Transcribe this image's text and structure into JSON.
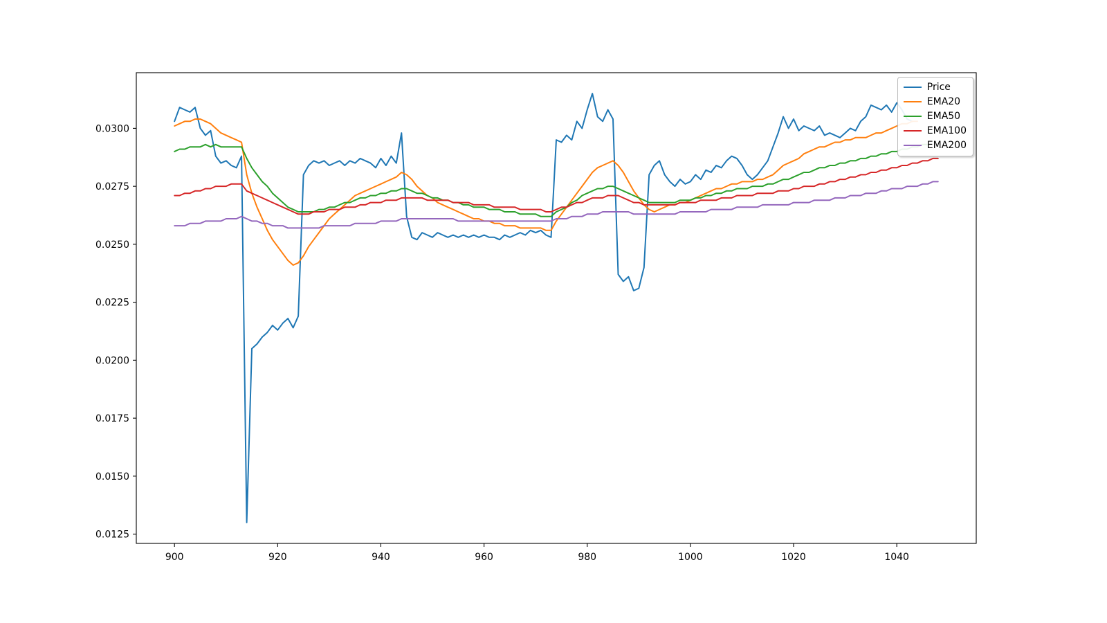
{
  "figure": {
    "background": "#ffffff",
    "axes_color": "#000000"
  },
  "chart_data": {
    "type": "line",
    "title": "",
    "xlabel": "",
    "ylabel": "",
    "grid": false,
    "legend_position": "upper right",
    "xlim": [
      892.6,
      1055.4
    ],
    "ylim": [
      0.0121,
      0.0324
    ],
    "xticks": [
      900,
      920,
      940,
      960,
      980,
      1000,
      1020,
      1040
    ],
    "xtick_labels": [
      "900",
      "920",
      "940",
      "960",
      "980",
      "1000",
      "1020",
      "1040"
    ],
    "yticks": [
      0.0125,
      0.015,
      0.0175,
      0.02,
      0.0225,
      0.025,
      0.0275,
      0.03
    ],
    "ytick_labels": [
      "0.0125",
      "0.0150",
      "0.0175",
      "0.0200",
      "0.0225",
      "0.0250",
      "0.0275",
      "0.0300"
    ],
    "x_start": 900,
    "x_step": 1,
    "series": [
      {
        "name": "Price",
        "color": "#1f77b4",
        "values": [
          0.0303,
          0.0309,
          0.0308,
          0.0307,
          0.0309,
          0.03,
          0.0297,
          0.0299,
          0.0288,
          0.0285,
          0.0286,
          0.0284,
          0.0283,
          0.0288,
          0.013,
          0.0205,
          0.0207,
          0.021,
          0.0212,
          0.0215,
          0.0213,
          0.0216,
          0.0218,
          0.0214,
          0.0219,
          0.028,
          0.0284,
          0.0286,
          0.0285,
          0.0286,
          0.0284,
          0.0285,
          0.0286,
          0.0284,
          0.0286,
          0.0285,
          0.0287,
          0.0286,
          0.0285,
          0.0283,
          0.0287,
          0.0284,
          0.0288,
          0.0285,
          0.0298,
          0.0262,
          0.0253,
          0.0252,
          0.0255,
          0.0254,
          0.0253,
          0.0255,
          0.0254,
          0.0253,
          0.0254,
          0.0253,
          0.0254,
          0.0253,
          0.0254,
          0.0253,
          0.0254,
          0.0253,
          0.0253,
          0.0252,
          0.0254,
          0.0253,
          0.0254,
          0.0255,
          0.0254,
          0.0256,
          0.0255,
          0.0256,
          0.0254,
          0.0253,
          0.0295,
          0.0294,
          0.0297,
          0.0295,
          0.0303,
          0.03,
          0.0308,
          0.0315,
          0.0305,
          0.0303,
          0.0308,
          0.0304,
          0.0237,
          0.0234,
          0.0236,
          0.023,
          0.0231,
          0.024,
          0.028,
          0.0284,
          0.0286,
          0.028,
          0.0277,
          0.0275,
          0.0278,
          0.0276,
          0.0277,
          0.028,
          0.0278,
          0.0282,
          0.0281,
          0.0284,
          0.0283,
          0.0286,
          0.0288,
          0.0287,
          0.0284,
          0.028,
          0.0278,
          0.028,
          0.0283,
          0.0286,
          0.0292,
          0.0298,
          0.0305,
          0.03,
          0.0304,
          0.0299,
          0.0301,
          0.03,
          0.0299,
          0.0301,
          0.0297,
          0.0298,
          0.0297,
          0.0296,
          0.0298,
          0.03,
          0.0299,
          0.0303,
          0.0305,
          0.031,
          0.0309,
          0.0308,
          0.031,
          0.0307,
          0.0311,
          0.0308,
          0.0304,
          0.0303
        ]
      },
      {
        "name": "EMA20",
        "color": "#ff7f0e",
        "values": [
          0.0301,
          0.0302,
          0.0303,
          0.0303,
          0.0304,
          0.0304,
          0.0303,
          0.0302,
          0.03,
          0.0298,
          0.0297,
          0.0296,
          0.0295,
          0.0294,
          0.028,
          0.0272,
          0.0266,
          0.0261,
          0.0256,
          0.0252,
          0.0249,
          0.0246,
          0.0243,
          0.0241,
          0.0242,
          0.0245,
          0.0249,
          0.0252,
          0.0255,
          0.0258,
          0.0261,
          0.0263,
          0.0265,
          0.0267,
          0.0269,
          0.0271,
          0.0272,
          0.0273,
          0.0274,
          0.0275,
          0.0276,
          0.0277,
          0.0278,
          0.0279,
          0.0281,
          0.028,
          0.0278,
          0.0275,
          0.0273,
          0.0271,
          0.027,
          0.0268,
          0.0267,
          0.0266,
          0.0265,
          0.0264,
          0.0263,
          0.0262,
          0.0261,
          0.0261,
          0.026,
          0.026,
          0.0259,
          0.0259,
          0.0258,
          0.0258,
          0.0258,
          0.0257,
          0.0257,
          0.0257,
          0.0257,
          0.0257,
          0.0256,
          0.0256,
          0.026,
          0.0263,
          0.0266,
          0.0269,
          0.0272,
          0.0275,
          0.0278,
          0.0281,
          0.0283,
          0.0284,
          0.0285,
          0.0286,
          0.0284,
          0.0281,
          0.0277,
          0.0273,
          0.027,
          0.0267,
          0.0265,
          0.0264,
          0.0265,
          0.0266,
          0.0267,
          0.0267,
          0.0268,
          0.0268,
          0.0269,
          0.027,
          0.0271,
          0.0272,
          0.0273,
          0.0274,
          0.0274,
          0.0275,
          0.0276,
          0.0276,
          0.0277,
          0.0277,
          0.0277,
          0.0278,
          0.0278,
          0.0279,
          0.028,
          0.0282,
          0.0284,
          0.0285,
          0.0286,
          0.0287,
          0.0289,
          0.029,
          0.0291,
          0.0292,
          0.0292,
          0.0293,
          0.0294,
          0.0294,
          0.0295,
          0.0295,
          0.0296,
          0.0296,
          0.0296,
          0.0297,
          0.0298,
          0.0298,
          0.0299,
          0.03,
          0.0301,
          0.0302,
          0.0302,
          0.0303,
          0.0303
        ]
      },
      {
        "name": "EMA50",
        "color": "#2ca02c",
        "values": [
          0.029,
          0.0291,
          0.0291,
          0.0292,
          0.0292,
          0.0292,
          0.0293,
          0.0292,
          0.0293,
          0.0292,
          0.0292,
          0.0292,
          0.0292,
          0.0292,
          0.0287,
          0.0283,
          0.028,
          0.0277,
          0.0275,
          0.0272,
          0.027,
          0.0268,
          0.0266,
          0.0265,
          0.0264,
          0.0264,
          0.0264,
          0.0264,
          0.0265,
          0.0265,
          0.0266,
          0.0266,
          0.0267,
          0.0268,
          0.0268,
          0.0269,
          0.027,
          0.027,
          0.0271,
          0.0271,
          0.0272,
          0.0272,
          0.0273,
          0.0273,
          0.0274,
          0.0274,
          0.0273,
          0.0272,
          0.0272,
          0.0271,
          0.027,
          0.027,
          0.0269,
          0.0269,
          0.0268,
          0.0268,
          0.0267,
          0.0267,
          0.0266,
          0.0266,
          0.0266,
          0.0265,
          0.0265,
          0.0265,
          0.0264,
          0.0264,
          0.0264,
          0.0263,
          0.0263,
          0.0263,
          0.0263,
          0.0262,
          0.0262,
          0.0262,
          0.0264,
          0.0265,
          0.0266,
          0.0268,
          0.0269,
          0.0271,
          0.0272,
          0.0273,
          0.0274,
          0.0274,
          0.0275,
          0.0275,
          0.0274,
          0.0273,
          0.0272,
          0.0271,
          0.027,
          0.0269,
          0.0268,
          0.0268,
          0.0268,
          0.0268,
          0.0268,
          0.0268,
          0.0269,
          0.0269,
          0.0269,
          0.027,
          0.027,
          0.0271,
          0.0271,
          0.0272,
          0.0272,
          0.0273,
          0.0273,
          0.0274,
          0.0274,
          0.0274,
          0.0275,
          0.0275,
          0.0275,
          0.0276,
          0.0276,
          0.0277,
          0.0278,
          0.0278,
          0.0279,
          0.028,
          0.0281,
          0.0281,
          0.0282,
          0.0283,
          0.0283,
          0.0284,
          0.0284,
          0.0285,
          0.0285,
          0.0286,
          0.0286,
          0.0287,
          0.0287,
          0.0288,
          0.0288,
          0.0289,
          0.0289,
          0.029,
          0.029,
          0.0291,
          0.0291,
          0.0292,
          0.0292,
          0.0293,
          0.0293
        ]
      },
      {
        "name": "EMA100",
        "color": "#d62728",
        "values": [
          0.0271,
          0.0271,
          0.0272,
          0.0272,
          0.0273,
          0.0273,
          0.0274,
          0.0274,
          0.0275,
          0.0275,
          0.0275,
          0.0276,
          0.0276,
          0.0276,
          0.0273,
          0.0272,
          0.0271,
          0.027,
          0.0269,
          0.0268,
          0.0267,
          0.0266,
          0.0265,
          0.0264,
          0.0263,
          0.0263,
          0.0263,
          0.0264,
          0.0264,
          0.0264,
          0.0265,
          0.0265,
          0.0265,
          0.0266,
          0.0266,
          0.0266,
          0.0267,
          0.0267,
          0.0268,
          0.0268,
          0.0268,
          0.0269,
          0.0269,
          0.0269,
          0.027,
          0.027,
          0.027,
          0.027,
          0.027,
          0.0269,
          0.0269,
          0.0269,
          0.0269,
          0.0269,
          0.0268,
          0.0268,
          0.0268,
          0.0268,
          0.0267,
          0.0267,
          0.0267,
          0.0267,
          0.0266,
          0.0266,
          0.0266,
          0.0266,
          0.0266,
          0.0265,
          0.0265,
          0.0265,
          0.0265,
          0.0265,
          0.0264,
          0.0264,
          0.0265,
          0.0266,
          0.0266,
          0.0267,
          0.0268,
          0.0268,
          0.0269,
          0.027,
          0.027,
          0.027,
          0.0271,
          0.0271,
          0.0271,
          0.027,
          0.0269,
          0.0268,
          0.0268,
          0.0267,
          0.0267,
          0.0267,
          0.0267,
          0.0267,
          0.0267,
          0.0267,
          0.0268,
          0.0268,
          0.0268,
          0.0268,
          0.0269,
          0.0269,
          0.0269,
          0.0269,
          0.027,
          0.027,
          0.027,
          0.0271,
          0.0271,
          0.0271,
          0.0271,
          0.0272,
          0.0272,
          0.0272,
          0.0272,
          0.0273,
          0.0273,
          0.0273,
          0.0274,
          0.0274,
          0.0275,
          0.0275,
          0.0275,
          0.0276,
          0.0276,
          0.0277,
          0.0277,
          0.0278,
          0.0278,
          0.0279,
          0.0279,
          0.028,
          0.028,
          0.0281,
          0.0281,
          0.0282,
          0.0282,
          0.0283,
          0.0283,
          0.0284,
          0.0284,
          0.0285,
          0.0285,
          0.0286,
          0.0286,
          0.0287,
          0.0287
        ]
      },
      {
        "name": "EMA200",
        "color": "#9467bd",
        "values": [
          0.0258,
          0.0258,
          0.0258,
          0.0259,
          0.0259,
          0.0259,
          0.026,
          0.026,
          0.026,
          0.026,
          0.0261,
          0.0261,
          0.0261,
          0.0262,
          0.0261,
          0.026,
          0.026,
          0.0259,
          0.0259,
          0.0258,
          0.0258,
          0.0258,
          0.0257,
          0.0257,
          0.0257,
          0.0257,
          0.0257,
          0.0257,
          0.0257,
          0.0258,
          0.0258,
          0.0258,
          0.0258,
          0.0258,
          0.0258,
          0.0259,
          0.0259,
          0.0259,
          0.0259,
          0.0259,
          0.026,
          0.026,
          0.026,
          0.026,
          0.0261,
          0.0261,
          0.0261,
          0.0261,
          0.0261,
          0.0261,
          0.0261,
          0.0261,
          0.0261,
          0.0261,
          0.0261,
          0.026,
          0.026,
          0.026,
          0.026,
          0.026,
          0.026,
          0.026,
          0.026,
          0.026,
          0.026,
          0.026,
          0.026,
          0.026,
          0.026,
          0.026,
          0.026,
          0.026,
          0.026,
          0.026,
          0.0261,
          0.0261,
          0.0261,
          0.0262,
          0.0262,
          0.0262,
          0.0263,
          0.0263,
          0.0263,
          0.0264,
          0.0264,
          0.0264,
          0.0264,
          0.0264,
          0.0264,
          0.0263,
          0.0263,
          0.0263,
          0.0263,
          0.0263,
          0.0263,
          0.0263,
          0.0263,
          0.0263,
          0.0264,
          0.0264,
          0.0264,
          0.0264,
          0.0264,
          0.0264,
          0.0265,
          0.0265,
          0.0265,
          0.0265,
          0.0265,
          0.0266,
          0.0266,
          0.0266,
          0.0266,
          0.0266,
          0.0267,
          0.0267,
          0.0267,
          0.0267,
          0.0267,
          0.0267,
          0.0268,
          0.0268,
          0.0268,
          0.0268,
          0.0269,
          0.0269,
          0.0269,
          0.0269,
          0.027,
          0.027,
          0.027,
          0.0271,
          0.0271,
          0.0271,
          0.0272,
          0.0272,
          0.0272,
          0.0273,
          0.0273,
          0.0274,
          0.0274,
          0.0274,
          0.0275,
          0.0275,
          0.0275,
          0.0276,
          0.0276,
          0.0277,
          0.0277
        ]
      }
    ]
  }
}
